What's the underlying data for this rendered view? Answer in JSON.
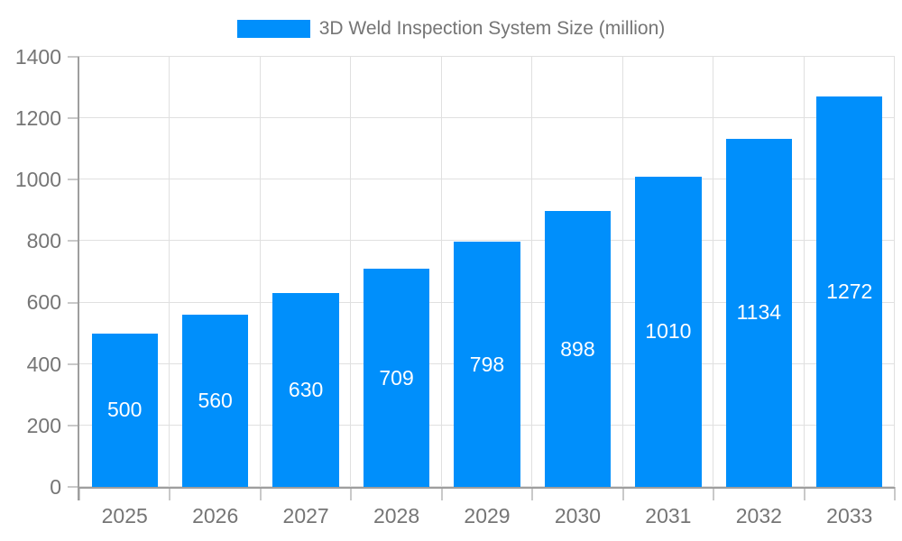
{
  "legend": {
    "position": "top"
  },
  "chart_data": {
    "type": "bar",
    "title": "3D Weld Inspection System Size (million)",
    "categories": [
      "2025",
      "2026",
      "2027",
      "2028",
      "2029",
      "2030",
      "2031",
      "2032",
      "2033"
    ],
    "values": [
      500,
      560,
      630,
      709,
      798,
      898,
      1010,
      1134,
      1272
    ],
    "xlabel": "",
    "ylabel": "",
    "ylim": [
      0,
      1400
    ],
    "yticks": [
      0,
      200,
      400,
      600,
      800,
      1000,
      1200,
      1400
    ],
    "grid": true,
    "legend_position": "top",
    "bar_color": "#008ffb",
    "value_label_color": "#ffffff",
    "axis_label_color": "#757575",
    "gridline_color": "#e0e0e0",
    "axis_line_color": "#9e9e9e",
    "bar_width_frac": 0.73
  }
}
